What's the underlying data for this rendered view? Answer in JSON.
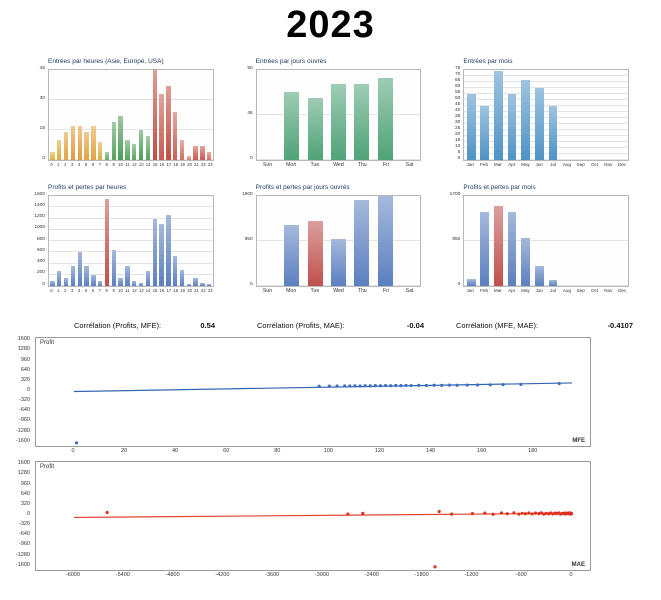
{
  "page": {
    "title": "2023"
  },
  "correlations": [
    {
      "label": "Corrélation (Profits, MFE):",
      "value": "0.54"
    },
    {
      "label": "Corrélation (Profits, MAE):",
      "value": "-0.04"
    },
    {
      "label": "Corrélation (MFE, MAE):",
      "value": "-0.4107"
    }
  ],
  "chart_data": [
    {
      "type": "bar",
      "title": "Entrées par heures (Asie, Europe, USA)",
      "categories": [
        "0",
        "1",
        "2",
        "3",
        "4",
        "5",
        "6",
        "7",
        "8",
        "9",
        "10",
        "11",
        "12",
        "13",
        "14",
        "15",
        "16",
        "17",
        "18",
        "19",
        "20",
        "21",
        "22",
        "23"
      ],
      "values": [
        4,
        10,
        14,
        17,
        17,
        14,
        17,
        9,
        4,
        19,
        22,
        10,
        8,
        15,
        12,
        45,
        33,
        37,
        24,
        10,
        2,
        7,
        7,
        4
      ],
      "ylim": [
        0,
        45
      ],
      "yticks": [
        45,
        30,
        15,
        0
      ],
      "bar_colors": [
        "#d8b343",
        "#dcab40",
        "#e0a33e",
        "#e29b3b",
        "#e29b3b",
        "#e0a33e",
        "#e0a33e",
        "#dcab40",
        "#63a964",
        "#55a25c",
        "#4d9d57",
        "#55a25c",
        "#5aa55f",
        "#4d9d57",
        "#55a25c",
        "#c24e42",
        "#c95a4e",
        "#c24e42",
        "#cc6055",
        "#d16e63",
        "#d47b70",
        "#c95a4e",
        "#c95a4e",
        "#d16e63"
      ]
    },
    {
      "type": "bar",
      "title": "Entrées par jours ouvrés",
      "categories": [
        "Sun",
        "Mon",
        "Tue",
        "Wed",
        "Thu",
        "Fri",
        "Sat"
      ],
      "values": [
        0,
        68,
        62,
        76,
        76,
        82,
        0
      ],
      "ylim": [
        0,
        90
      ],
      "yticks": [
        90,
        45,
        0
      ],
      "color": "#4fa377"
    },
    {
      "type": "bar",
      "title": "Entrées par mois",
      "categories": [
        "Jan",
        "Feb",
        "Mar",
        "Apr",
        "May",
        "Jun",
        "Jul",
        "Aug",
        "Sep",
        "Oct",
        "Nov",
        "Dec"
      ],
      "values": [
        55,
        45,
        74,
        55,
        67,
        60,
        45,
        0,
        0,
        0,
        0,
        0
      ],
      "ylim": [
        0,
        75
      ],
      "yticks": [
        75,
        70,
        65,
        60,
        55,
        50,
        45,
        40,
        35,
        30,
        25,
        20,
        15,
        10,
        5,
        0
      ],
      "color": "#4e93c6"
    },
    {
      "type": "bar",
      "title": "Profits et pertes par heures",
      "categories": [
        "0",
        "1",
        "2",
        "3",
        "4",
        "5",
        "6",
        "7",
        "8",
        "9",
        "10",
        "11",
        "12",
        "13",
        "14",
        "15",
        "16",
        "17",
        "18",
        "19",
        "20",
        "21",
        "22",
        "23"
      ],
      "values": [
        90,
        260,
        140,
        350,
        600,
        350,
        190,
        90,
        1550,
        640,
        140,
        350,
        90,
        50,
        260,
        1190,
        1100,
        1260,
        540,
        280,
        40,
        140,
        50,
        30
      ],
      "ylim": [
        0,
        1600
      ],
      "yticks": [
        1600,
        1400,
        1200,
        1000,
        800,
        600,
        400,
        200,
        0
      ],
      "color": "#5b7fc0",
      "highlight_index": 8,
      "highlight_color": "#c0504d"
    },
    {
      "type": "bar",
      "title": "Profits et pertes par jours ouvrés",
      "categories": [
        "Sun",
        "Mon",
        "Tue",
        "Wed",
        "Thu",
        "Fri",
        "Sat"
      ],
      "values": [
        0,
        1280,
        1380,
        1000,
        1820,
        1900,
        0
      ],
      "ylim": [
        0,
        1900
      ],
      "yticks": [
        1900,
        950,
        0
      ],
      "color": "#5b7fc0",
      "highlight_index": 2,
      "highlight_color": "#c0504d"
    },
    {
      "type": "bar",
      "title": "Profits et pertes par mois",
      "categories": [
        "Jan",
        "Feb",
        "Mar",
        "Apr",
        "May",
        "Jun",
        "Jul",
        "Aug",
        "Sep",
        "Oct",
        "Nov",
        "Dec"
      ],
      "values": [
        130,
        1400,
        1520,
        1400,
        900,
        380,
        120,
        0,
        0,
        0,
        0,
        0
      ],
      "ylim": [
        0,
        1700
      ],
      "yticks": [
        1700,
        850,
        0
      ],
      "color": "#5b7fc0",
      "highlight_index": 2,
      "highlight_color": "#c0504d"
    },
    {
      "type": "scatter",
      "ylabel": "Profit",
      "xlabel": "MFE",
      "xlim": [
        0,
        195
      ],
      "ylim": [
        -1700,
        1700
      ],
      "xticks": [
        0,
        20,
        40,
        60,
        80,
        100,
        120,
        140,
        160,
        180
      ],
      "yticks": [
        1600,
        1280,
        960,
        640,
        320,
        0,
        -320,
        -640,
        -960,
        -1280,
        -1600
      ],
      "line_color": "#3465b0",
      "point_color": "#3f6fc0",
      "trend": [
        [
          0,
          15
        ],
        [
          195,
          285
        ]
      ],
      "points": [
        [
          1,
          -1600
        ],
        [
          96,
          180
        ],
        [
          100,
          185
        ],
        [
          103,
          190
        ],
        [
          106,
          192
        ],
        [
          108,
          188
        ],
        [
          110,
          195
        ],
        [
          112,
          190
        ],
        [
          114,
          198
        ],
        [
          116,
          193
        ],
        [
          118,
          200
        ],
        [
          120,
          196
        ],
        [
          122,
          203
        ],
        [
          124,
          198
        ],
        [
          126,
          205
        ],
        [
          128,
          200
        ],
        [
          130,
          207
        ],
        [
          132,
          203
        ],
        [
          135,
          210
        ],
        [
          138,
          206
        ],
        [
          141,
          213
        ],
        [
          144,
          209
        ],
        [
          147,
          216
        ],
        [
          150,
          212
        ],
        [
          154,
          219
        ],
        [
          158,
          222
        ],
        [
          163,
          227
        ],
        [
          168,
          231
        ],
        [
          175,
          240
        ],
        [
          190,
          268
        ]
      ]
    },
    {
      "type": "scatter",
      "ylabel": "Profit",
      "xlabel": "MAE",
      "xlim": [
        -6000,
        0
      ],
      "ylim": [
        -1700,
        1700
      ],
      "xticks": [
        -6000,
        -5400,
        -4800,
        -4200,
        -3600,
        -3000,
        -2400,
        -1800,
        -1200,
        -600,
        0
      ],
      "yticks": [
        1600,
        1280,
        960,
        640,
        320,
        0,
        -320,
        -640,
        -960,
        -1280,
        -1600
      ],
      "line_color": "#e0442e",
      "point_color": "#e0301e",
      "trend": [
        [
          -6000,
          -45
        ],
        [
          0,
          85
        ]
      ],
      "points": [
        [
          -5600,
          110
        ],
        [
          -2700,
          60
        ],
        [
          -2520,
          85
        ],
        [
          -1650,
          -1600
        ],
        [
          -1600,
          140
        ],
        [
          -1450,
          60
        ],
        [
          -1200,
          75
        ],
        [
          -1050,
          90
        ],
        [
          -950,
          55
        ],
        [
          -850,
          95
        ],
        [
          -780,
          70
        ],
        [
          -700,
          100
        ],
        [
          -640,
          60
        ],
        [
          -600,
          85
        ],
        [
          -560,
          70
        ],
        [
          -520,
          95
        ],
        [
          -480,
          65
        ],
        [
          -440,
          90
        ],
        [
          -400,
          75
        ],
        [
          -370,
          100
        ],
        [
          -340,
          60
        ],
        [
          -310,
          85
        ],
        [
          -280,
          70
        ],
        [
          -255,
          95
        ],
        [
          -230,
          65
        ],
        [
          -205,
          90
        ],
        [
          -185,
          75
        ],
        [
          -160,
          100
        ],
        [
          -140,
          60
        ],
        [
          -120,
          85
        ],
        [
          -100,
          70
        ],
        [
          -85,
          95
        ],
        [
          -70,
          65
        ],
        [
          -55,
          90
        ],
        [
          -40,
          75
        ],
        [
          -28,
          100
        ],
        [
          -18,
          60
        ],
        [
          -10,
          85
        ],
        [
          -5,
          70
        ]
      ]
    }
  ]
}
